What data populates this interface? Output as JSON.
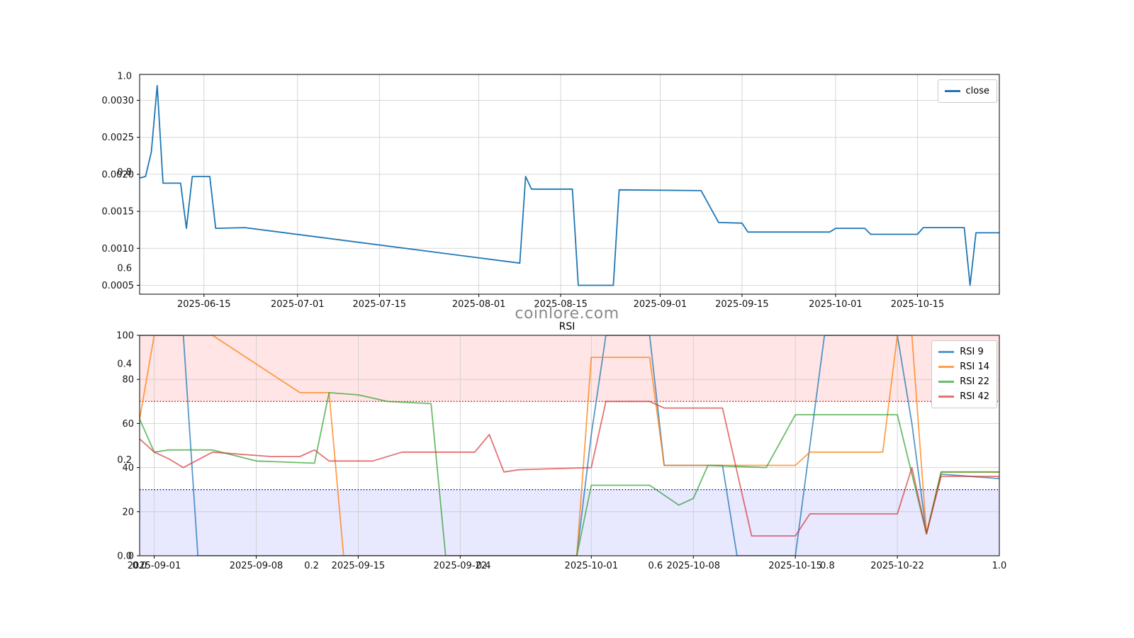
{
  "watermark": "coinlore.com",
  "ghost_axis": {
    "left": [
      "1.0",
      "0.8",
      "0.6",
      "0.4",
      "0.2",
      "0.0"
    ],
    "bottom": [
      "0.0",
      "0.2",
      "0.4",
      "0.6",
      "0.8",
      "1.0"
    ]
  },
  "chart_data": [
    {
      "type": "line",
      "title": "",
      "x_domain": [
        "2025-06-04",
        "2025-10-29"
      ],
      "ylim": [
        0.00038,
        0.00335
      ],
      "yticks": [
        0.0005,
        0.001,
        0.0015,
        0.002,
        0.0025,
        0.003
      ],
      "ytick_labels": [
        "0.0005",
        "0.0010",
        "0.0015",
        "0.0020",
        "0.0025",
        "0.0030"
      ],
      "xticks": [
        "2025-06-15",
        "2025-07-01",
        "2025-07-15",
        "2025-08-01",
        "2025-08-15",
        "2025-09-01",
        "2025-09-15",
        "2025-10-01",
        "2025-10-15"
      ],
      "grid": true,
      "legend_position": "upper right",
      "series": [
        {
          "name": "close",
          "color": "#1f77b4",
          "points": [
            [
              "2025-06-04",
              0.00195
            ],
            [
              "2025-06-05",
              0.00197
            ],
            [
              "2025-06-06",
              0.0023
            ],
            [
              "2025-06-07",
              0.0032
            ],
            [
              "2025-06-08",
              0.00188
            ],
            [
              "2025-06-11",
              0.00188
            ],
            [
              "2025-06-12",
              0.00127
            ],
            [
              "2025-06-13",
              0.00197
            ],
            [
              "2025-06-16",
              0.00197
            ],
            [
              "2025-06-17",
              0.00127
            ],
            [
              "2025-06-22",
              0.00128
            ],
            [
              "2025-08-08",
              0.0008
            ],
            [
              "2025-08-09",
              0.00197
            ],
            [
              "2025-08-10",
              0.0018
            ],
            [
              "2025-08-17",
              0.0018
            ],
            [
              "2025-08-18",
              0.0005
            ],
            [
              "2025-08-24",
              0.0005
            ],
            [
              "2025-08-25",
              0.00179
            ],
            [
              "2025-09-08",
              0.00178
            ],
            [
              "2025-09-11",
              0.00135
            ],
            [
              "2025-09-15",
              0.00134
            ],
            [
              "2025-09-16",
              0.00122
            ],
            [
              "2025-09-30",
              0.00122
            ],
            [
              "2025-10-01",
              0.00127
            ],
            [
              "2025-10-06",
              0.00127
            ],
            [
              "2025-10-07",
              0.00119
            ],
            [
              "2025-10-15",
              0.00119
            ],
            [
              "2025-10-16",
              0.00128
            ],
            [
              "2025-10-23",
              0.00128
            ],
            [
              "2025-10-24",
              0.0005
            ],
            [
              "2025-10-25",
              0.00121
            ],
            [
              "2025-10-29",
              0.00121
            ]
          ]
        }
      ]
    },
    {
      "type": "line",
      "title": "RSI",
      "x_domain": [
        "2025-08-31",
        "2025-10-29"
      ],
      "ylim": [
        0,
        100
      ],
      "yticks": [
        0,
        20,
        40,
        60,
        80,
        100
      ],
      "ytick_labels": [
        "0",
        "20",
        "40",
        "60",
        "80",
        "100"
      ],
      "xticks": [
        "2025-09-01",
        "2025-09-08",
        "2025-09-15",
        "2025-09-22",
        "2025-10-01",
        "2025-10-08",
        "2025-10-15",
        "2025-10-22"
      ],
      "grid": true,
      "legend_position": "upper right",
      "bands": [
        {
          "from": 70,
          "to": 100,
          "color": "rgba(255,0,0,0.10)",
          "meaning": "overbought"
        },
        {
          "from": 0,
          "to": 30,
          "color": "rgba(0,0,255,0.09)",
          "meaning": "oversold"
        }
      ],
      "hlines": [
        {
          "y": 70,
          "color": "#cc0000",
          "style": "dotted"
        },
        {
          "y": 30,
          "color": "#00008b",
          "style": "dotted"
        }
      ],
      "series": [
        {
          "name": "RSI 9",
          "color": "rgba(31,119,180,0.75)",
          "points": [
            [
              "2025-08-31",
              100
            ],
            [
              "2025-09-03",
              100
            ],
            [
              "2025-09-04",
              0
            ],
            [
              "2025-09-30",
              0
            ],
            [
              "2025-10-01",
              55
            ],
            [
              "2025-10-02",
              100
            ],
            [
              "2025-10-05",
              100
            ],
            [
              "2025-10-06",
              41
            ],
            [
              "2025-10-10",
              41
            ],
            [
              "2025-10-11",
              0
            ],
            [
              "2025-10-15",
              0
            ],
            [
              "2025-10-17",
              100
            ],
            [
              "2025-10-22",
              100
            ],
            [
              "2025-10-23",
              60
            ],
            [
              "2025-10-24",
              10
            ],
            [
              "2025-10-25",
              37
            ],
            [
              "2025-10-29",
              35
            ]
          ]
        },
        {
          "name": "RSI 14",
          "color": "rgba(255,127,14,0.75)",
          "points": [
            [
              "2025-08-31",
              62
            ],
            [
              "2025-09-01",
              100
            ],
            [
              "2025-09-05",
              100
            ],
            [
              "2025-09-11",
              74
            ],
            [
              "2025-09-13",
              74
            ],
            [
              "2025-09-14",
              0
            ],
            [
              "2025-09-30",
              0
            ],
            [
              "2025-10-01",
              90
            ],
            [
              "2025-10-05",
              90
            ],
            [
              "2025-10-06",
              41
            ],
            [
              "2025-10-15",
              41
            ],
            [
              "2025-10-16",
              47
            ],
            [
              "2025-10-21",
              47
            ],
            [
              "2025-10-22",
              100
            ],
            [
              "2025-10-23",
              100
            ],
            [
              "2025-10-24",
              10
            ],
            [
              "2025-10-25",
              38
            ],
            [
              "2025-10-29",
              38
            ]
          ]
        },
        {
          "name": "RSI 22",
          "color": "rgba(44,160,44,0.70)",
          "points": [
            [
              "2025-08-31",
              62
            ],
            [
              "2025-09-01",
              47
            ],
            [
              "2025-09-02",
              48
            ],
            [
              "2025-09-05",
              48
            ],
            [
              "2025-09-08",
              43
            ],
            [
              "2025-09-12",
              42
            ],
            [
              "2025-09-13",
              74
            ],
            [
              "2025-09-15",
              73
            ],
            [
              "2025-09-17",
              70
            ],
            [
              "2025-09-20",
              69
            ],
            [
              "2025-09-21",
              0
            ],
            [
              "2025-09-30",
              0
            ],
            [
              "2025-10-01",
              32
            ],
            [
              "2025-10-05",
              32
            ],
            [
              "2025-10-07",
              23
            ],
            [
              "2025-10-08",
              26
            ],
            [
              "2025-10-09",
              41
            ],
            [
              "2025-10-13",
              40
            ],
            [
              "2025-10-15",
              64
            ],
            [
              "2025-10-22",
              64
            ],
            [
              "2025-10-24",
              10
            ],
            [
              "2025-10-25",
              38
            ],
            [
              "2025-10-29",
              38
            ]
          ]
        },
        {
          "name": "RSI 42",
          "color": "rgba(214,39,40,0.65)",
          "points": [
            [
              "2025-08-31",
              53
            ],
            [
              "2025-09-01",
              47
            ],
            [
              "2025-09-02",
              44
            ],
            [
              "2025-09-03",
              40
            ],
            [
              "2025-09-05",
              47
            ],
            [
              "2025-09-09",
              45
            ],
            [
              "2025-09-11",
              45
            ],
            [
              "2025-09-12",
              48
            ],
            [
              "2025-09-13",
              43
            ],
            [
              "2025-09-16",
              43
            ],
            [
              "2025-09-18",
              47
            ],
            [
              "2025-09-23",
              47
            ],
            [
              "2025-09-24",
              55
            ],
            [
              "2025-09-25",
              38
            ],
            [
              "2025-09-26",
              39
            ],
            [
              "2025-10-01",
              40
            ],
            [
              "2025-10-02",
              70
            ],
            [
              "2025-10-05",
              70
            ],
            [
              "2025-10-06",
              67
            ],
            [
              "2025-10-10",
              67
            ],
            [
              "2025-10-12",
              9
            ],
            [
              "2025-10-15",
              9
            ],
            [
              "2025-10-16",
              19
            ],
            [
              "2025-10-22",
              19
            ],
            [
              "2025-10-23",
              40
            ],
            [
              "2025-10-24",
              10
            ],
            [
              "2025-10-25",
              36
            ],
            [
              "2025-10-29",
              36
            ]
          ]
        }
      ]
    }
  ]
}
